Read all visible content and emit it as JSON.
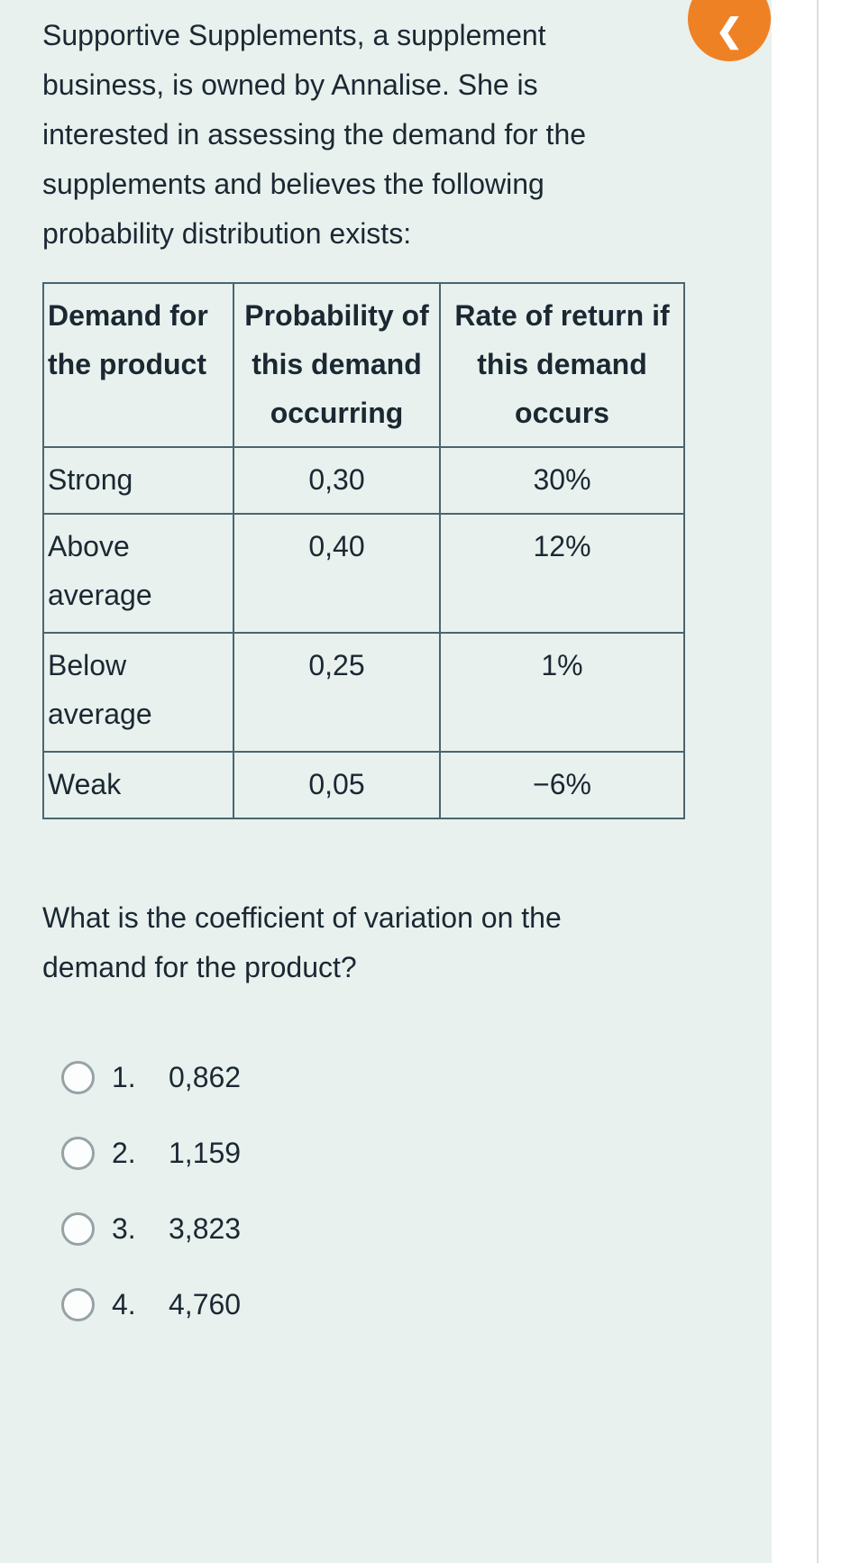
{
  "colors": {
    "background": "#e8f1ee",
    "rail": "#ffffff",
    "accent_orange": "#ef8125",
    "text": "#1b2832",
    "table_border": "#4a6570"
  },
  "nav": {
    "back_icon": "❮"
  },
  "question": {
    "intro": "Supportive Supplements, a supplement business, is owned by Annalise. She is interested in assessing the demand for the supplements and believes the following probability distribution exists:",
    "prompt": "What is the coefficient of variation on the demand for the product?"
  },
  "table": {
    "headers": [
      "Demand for the product",
      "Probability of this demand occurring",
      "Rate of return if this demand occurs"
    ],
    "rows": [
      [
        "Strong",
        "0,30",
        "30%"
      ],
      [
        "Above average",
        "0,40",
        "12%"
      ],
      [
        "Below average",
        "0,25",
        "1%"
      ],
      [
        "Weak",
        "0,05",
        "−6%"
      ]
    ]
  },
  "options": [
    {
      "number": "1.",
      "value": "0,862"
    },
    {
      "number": "2.",
      "value": "1,159"
    },
    {
      "number": "3.",
      "value": "3,823"
    },
    {
      "number": "4.",
      "value": "4,760"
    }
  ]
}
